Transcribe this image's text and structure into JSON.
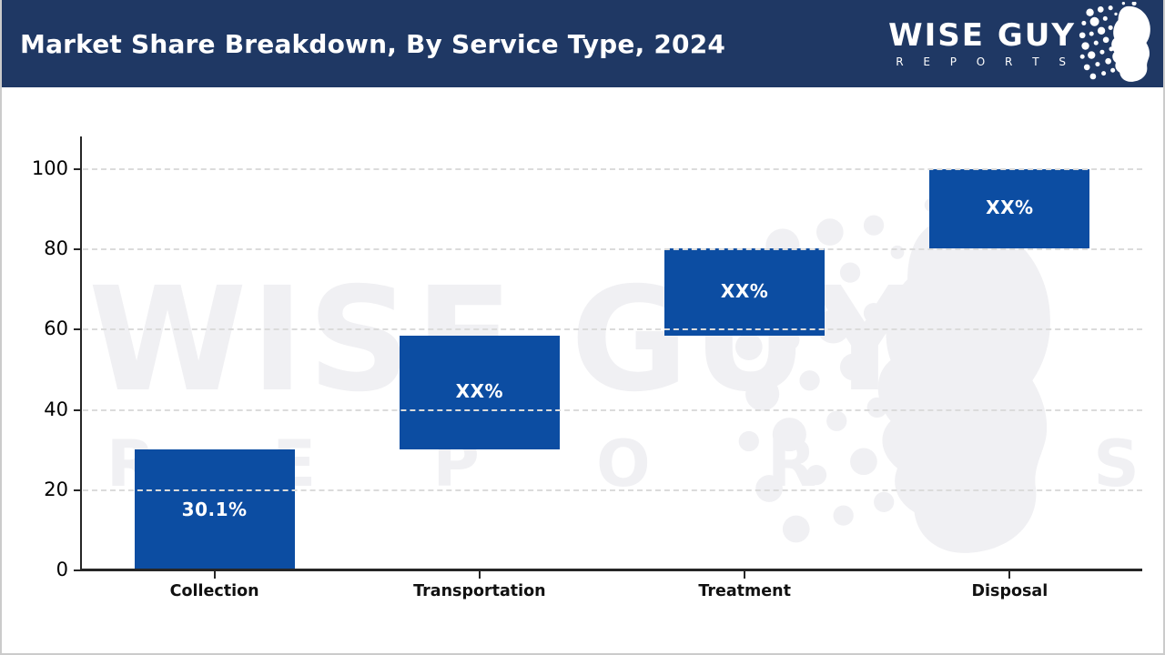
{
  "header": {
    "title": "Market Share Breakdown, By Service Type, 2024",
    "brand": {
      "name": "WISE GUY",
      "tagline": "R E P O R T S"
    }
  },
  "watermark": {
    "line1": "WISE GUY",
    "line2": "R E P O R T S"
  },
  "colors": {
    "header_bg": "#1F3864",
    "bar": "#0C4DA2",
    "grid": "#DBDBDB",
    "axis": "#262626",
    "bar_label": "#FFFFFF",
    "watermark": "#F0F0F3"
  },
  "chart_data": {
    "type": "bar",
    "subtype": "waterfall",
    "title": "Market Share Breakdown, By Service Type, 2024",
    "xlabel": "",
    "ylabel": "",
    "categories": [
      "Collection",
      "Transportation",
      "Treatment",
      "Disposal"
    ],
    "series": [
      {
        "name": "Market Share (%)",
        "bars": [
          {
            "category": "Collection",
            "start": 0,
            "end": 30.1,
            "label": "30.1%"
          },
          {
            "category": "Transportation",
            "start": 30.1,
            "end": 58.6,
            "label": "XX%"
          },
          {
            "category": "Treatment",
            "start": 58.6,
            "end": 80.3,
            "label": "XX%"
          },
          {
            "category": "Disposal",
            "start": 80.3,
            "end": 100,
            "label": "XX%"
          }
        ]
      }
    ],
    "yticks": [
      0,
      20,
      40,
      60,
      80,
      100
    ],
    "ylim": [
      0,
      108
    ],
    "grid": "dashed-horizontal, drawn above bars",
    "legend": "none"
  }
}
